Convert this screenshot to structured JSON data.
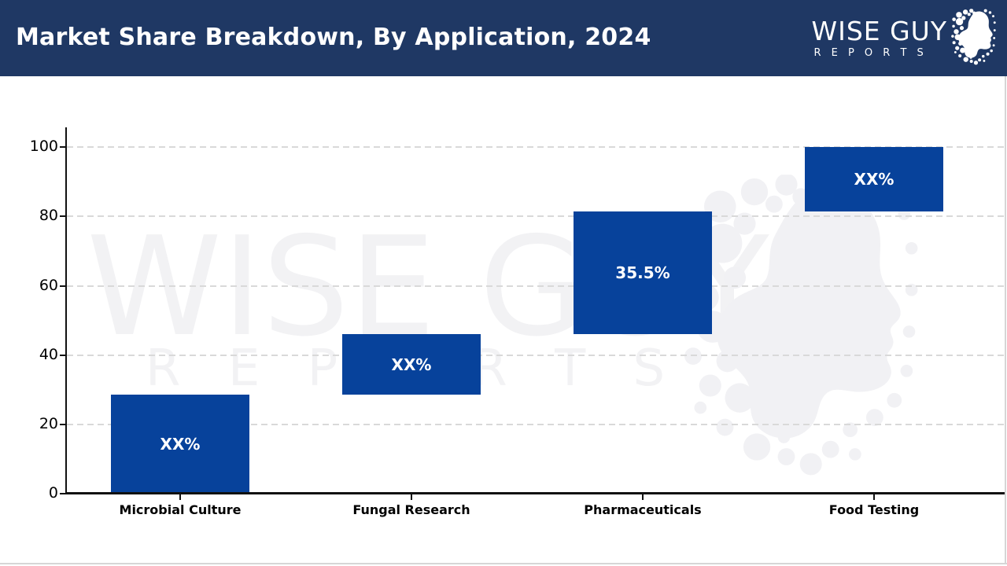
{
  "header": {
    "title": "Market Share Breakdown, By Application, 2024",
    "bg_color": "#1f3864",
    "logo": {
      "line1": "WISE GUY",
      "line2": "R E P O R T S"
    }
  },
  "watermark": {
    "line1": "WISE GUY",
    "line2": "R E P O R T S"
  },
  "chart_data": {
    "type": "bar",
    "subtype": "floating-segment-waterfall",
    "title": "Market Share Breakdown, By Application, 2024",
    "categories": [
      "Microbial Culture",
      "Fungal Research",
      "Pharmaceuticals",
      "Food Testing"
    ],
    "segments": [
      {
        "category": "Microbial Culture",
        "start": 0,
        "end": 28.5,
        "value": 28.5,
        "label": "XX%"
      },
      {
        "category": "Fungal Research",
        "start": 28.5,
        "end": 46,
        "value": 17.5,
        "label": "XX%"
      },
      {
        "category": "Pharmaceuticals",
        "start": 46,
        "end": 81.5,
        "value": 35.5,
        "label": "35.5%"
      },
      {
        "category": "Food Testing",
        "start": 81.5,
        "end": 100,
        "value": 18.5,
        "label": "XX%"
      }
    ],
    "xlabel": "",
    "ylabel": "",
    "yticks": [
      0,
      20,
      40,
      60,
      80,
      100
    ],
    "ylim": [
      0,
      106
    ],
    "grid": "dashed-horizontal",
    "legend": "none",
    "bar_color": "#07429b",
    "label_color": "#ffffff",
    "grid_color": "#d9d9d9",
    "axis_color": "#111111"
  }
}
